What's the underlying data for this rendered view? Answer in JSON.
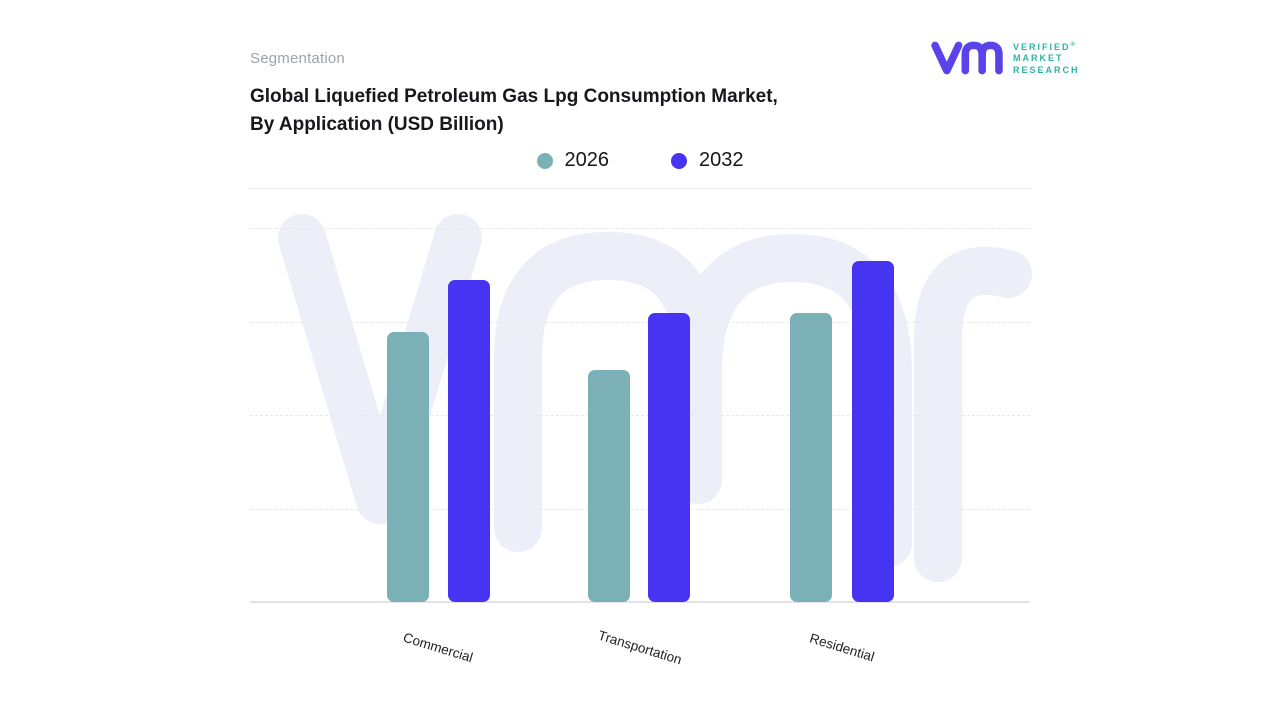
{
  "header": {
    "eyebrow": "Segmentation",
    "title_line1": "Global Liquefied Petroleum Gas Lpg Consumption Market,",
    "title_line2": "By Application (USD Billion)"
  },
  "logo": {
    "brand_lines": [
      "VERIFIED",
      "MARKET",
      "RESEARCH"
    ],
    "registered_mark": "®",
    "glyph_color": "#5A43E9",
    "text_color": "#2EB4A4"
  },
  "chart_data": {
    "type": "bar",
    "title": "Global Liquefied Petroleum Gas Lpg Consumption Market, By Application (USD Billion)",
    "categories": [
      "Commercial",
      "Transportation",
      "Residential"
    ],
    "series": [
      {
        "name": "2026",
        "color": "#7BB1B6",
        "values": [
          72,
          62,
          77
        ]
      },
      {
        "name": "2032",
        "color": "#4733F2",
        "values": [
          86,
          77,
          91
        ]
      }
    ],
    "xlabel": "",
    "ylabel": "",
    "ylim": [
      0,
      100
    ],
    "value_units": "relative height, % of plot (no y-axis tick labels shown)",
    "y_axis_visible": false,
    "grid": "horizontal dashed lines, 4 intervals",
    "legend_position": "top-center",
    "watermark_text": "vmr",
    "watermark_color": "#ECEEF8",
    "category_label_rotation_deg": 17
  }
}
